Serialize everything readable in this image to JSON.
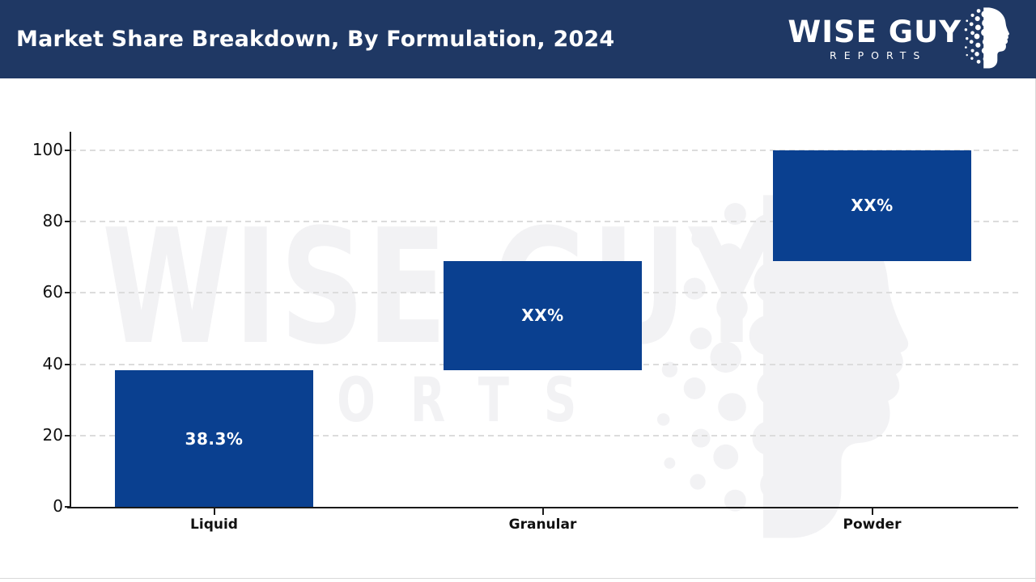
{
  "header": {
    "title": "Market Share Breakdown, By Formulation, 2024",
    "brand": {
      "line1": "WISE GUY",
      "line2": "REPORTS"
    }
  },
  "watermark": {
    "line1": "WISE GUY",
    "line2": "REPORTS"
  },
  "chart_data": {
    "type": "bar",
    "subtype": "waterfall",
    "title": "Market Share Breakdown, By Formulation, 2024",
    "categories": [
      "Liquid",
      "Granular",
      "Powder"
    ],
    "segments": [
      {
        "category": "Liquid",
        "start": 0,
        "end": 38.3,
        "label": "38.3%"
      },
      {
        "category": "Granular",
        "start": 38.3,
        "end": 69,
        "label": "XX%"
      },
      {
        "category": "Powder",
        "start": 69,
        "end": 100,
        "label": "XX%"
      }
    ],
    "ylim": [
      0,
      100
    ],
    "yticks": [
      0,
      20,
      40,
      60,
      80,
      100
    ],
    "xlabel": "",
    "ylabel": "",
    "grid": "horizontal-dashed",
    "legend": "none"
  },
  "colors": {
    "header_bg": "#1f3864",
    "bar": "#0a4090",
    "bar_label": "#ffffff",
    "grid": "#dcdcdc",
    "axis": "#1a1a1a",
    "watermark": "#f2f2f4"
  }
}
